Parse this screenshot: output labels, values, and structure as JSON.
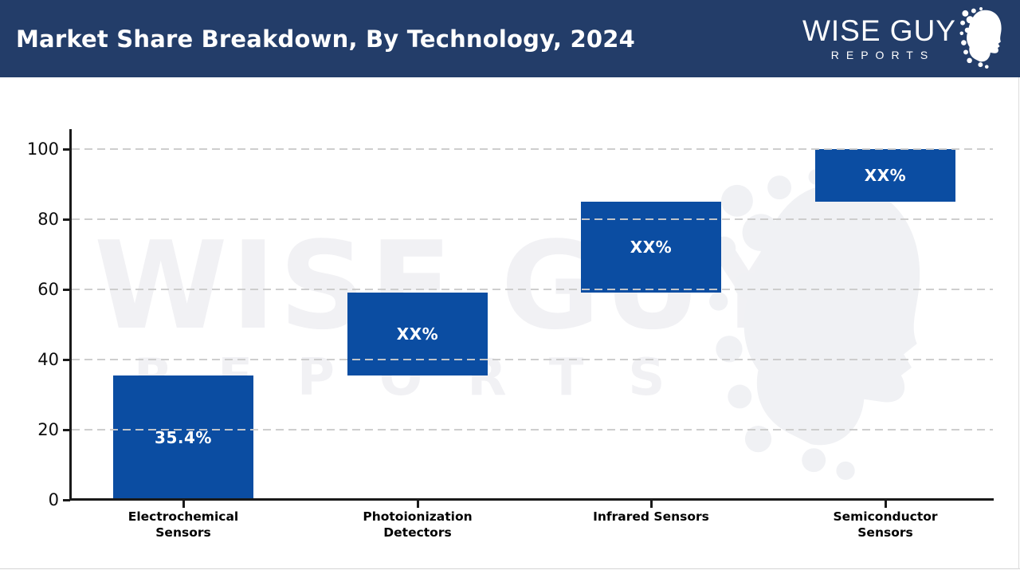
{
  "header": {
    "title": "Market Share Breakdown, By Technology, 2024",
    "logo": {
      "line1": "WISE GUY",
      "line2": "REPORTS"
    }
  },
  "watermark": {
    "line1": "WISE GUY",
    "line2": "REPORTS"
  },
  "chart_data": {
    "type": "bar",
    "subtype": "waterfall",
    "title": "Market Share Breakdown, By Technology, 2024",
    "categories": [
      "Electrochemical Sensors",
      "Photoionization Detectors",
      "Infrared Sensors",
      "Semiconductor Sensors"
    ],
    "segments": [
      {
        "category": "Electrochemical Sensors",
        "start": 0,
        "end": 35.4,
        "label": "35.4%"
      },
      {
        "category": "Photoionization Detectors",
        "start": 35.4,
        "end": 59,
        "label": "XX%"
      },
      {
        "category": "Infrared Sensors",
        "start": 59,
        "end": 85,
        "label": "XX%"
      },
      {
        "category": "Semiconductor Sensors",
        "start": 85,
        "end": 100,
        "label": "XX%"
      }
    ],
    "yticks": [
      0,
      20,
      40,
      60,
      80,
      100
    ],
    "ylim": [
      0,
      105
    ],
    "grid": true,
    "legend": false,
    "bar_color": "#0b4da2",
    "bar_label_color": "#ffffff",
    "gridline_color": "#cbcbcb",
    "header_color": "#233d69",
    "axis_color": "#1a1a1a"
  }
}
